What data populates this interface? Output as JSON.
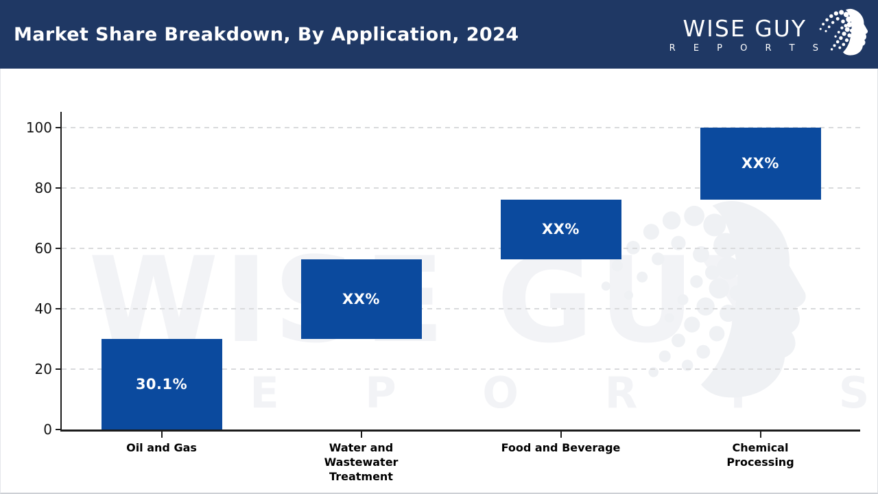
{
  "header": {
    "title": "Market Share Breakdown, By Application, 2024",
    "logo": {
      "name": "WISE GUY",
      "sub": "R E P O R T S"
    }
  },
  "watermark": {
    "line1": "WISE GUY",
    "line2": "R E P O R T S"
  },
  "colors": {
    "header_bg": "#1f3864",
    "bar": "#0b4a9e",
    "bar_label": "#ffffff",
    "gridline": "#d9dadc",
    "axis": "#1c1c1c",
    "watermark": "#f2f3f6"
  },
  "chart_data": {
    "type": "bar",
    "subtype": "waterfall",
    "title": "Market Share Breakdown, By Application, 2024",
    "xlabel": "",
    "ylabel": "",
    "ylim": [
      0,
      100
    ],
    "y_ticks": [
      0,
      20,
      40,
      60,
      80,
      100
    ],
    "grid": "horizontal-dashed",
    "legend": null,
    "categories": [
      "Oil and Gas",
      "Water and\nWastewater\nTreatment",
      "Food and Beverage",
      "Chemical\nProcessing"
    ],
    "segments": [
      {
        "category": "Oil and Gas",
        "start": 0,
        "end": 30.1,
        "value_label": "30.1%"
      },
      {
        "category": "Water and Wastewater Treatment",
        "start": 30.1,
        "end": 56.3,
        "value_label": "XX%"
      },
      {
        "category": "Food and Beverage",
        "start": 56.3,
        "end": 76.2,
        "value_label": "XX%"
      },
      {
        "category": "Chemical Processing",
        "start": 76.2,
        "end": 100,
        "value_label": "XX%"
      }
    ]
  }
}
